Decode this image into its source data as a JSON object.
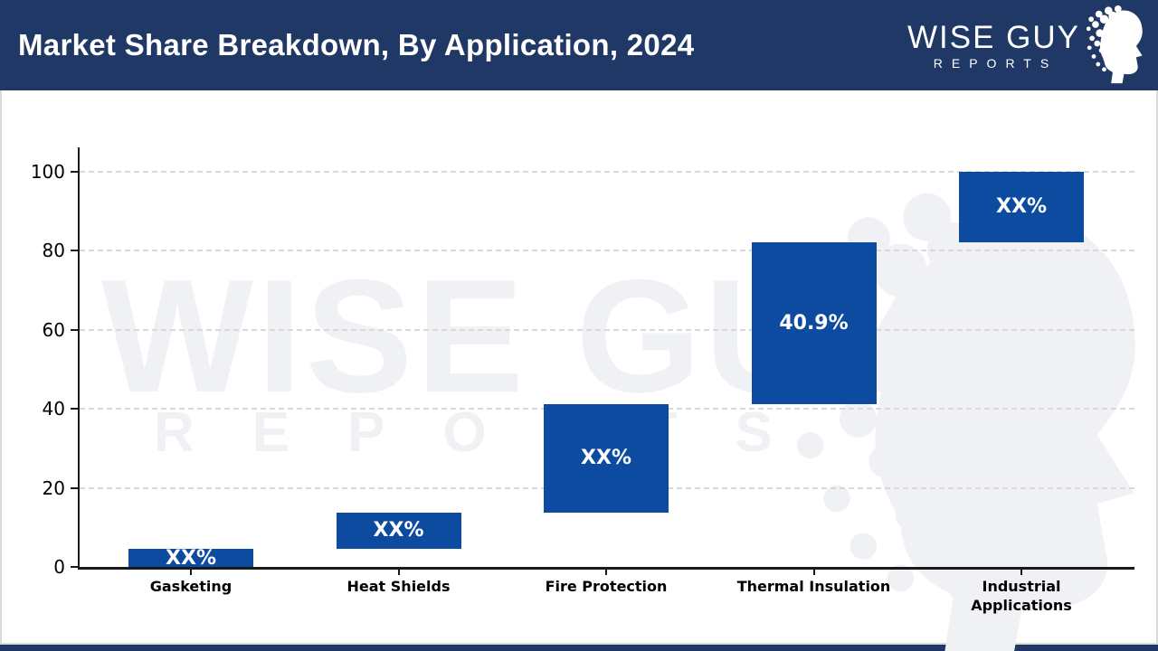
{
  "header": {
    "title": "Market Share Breakdown, By Application, 2024"
  },
  "logo": {
    "name_line": "WISE GUY",
    "sub_line": "REPORTS"
  },
  "watermark": {
    "name_line": "WISE GUY",
    "sub_line": "REPORTS"
  },
  "colors": {
    "header_bg": "#203865",
    "footer_bg": "#203865",
    "bar_fill": "#0c4ba0",
    "bar_label_text": "#ffffff",
    "gridline": "#d9d9d9",
    "axis": "#1a1a1a",
    "tick_text": "#000000",
    "watermark": "#eff1f4",
    "title_text": "#ffffff"
  },
  "chart_data": {
    "type": "bar",
    "subtype": "waterfall",
    "title": "Market Share Breakdown, By Application, 2024",
    "categories": [
      "Gasketing",
      "Heat Shields",
      "Fire Protection",
      "Thermal Insulation",
      "Industrial Applications"
    ],
    "segments": [
      {
        "category": "Gasketing",
        "start": 0,
        "end": 4.5,
        "label": "XX%"
      },
      {
        "category": "Heat Shields",
        "start": 4.5,
        "end": 13.8,
        "label": "XX%"
      },
      {
        "category": "Fire Protection",
        "start": 13.8,
        "end": 41.1,
        "label": "XX%"
      },
      {
        "category": "Thermal Insulation",
        "start": 41.1,
        "end": 82.0,
        "label": "40.9%"
      },
      {
        "category": "Industrial Applications",
        "start": 82.0,
        "end": 100.0,
        "label": "XX%"
      }
    ],
    "yticks": [
      0,
      20,
      40,
      60,
      80,
      100
    ],
    "ylim": [
      0,
      106
    ],
    "xlabel": "",
    "ylabel": "",
    "grid": "horizontal-dashed",
    "legend": "none"
  }
}
